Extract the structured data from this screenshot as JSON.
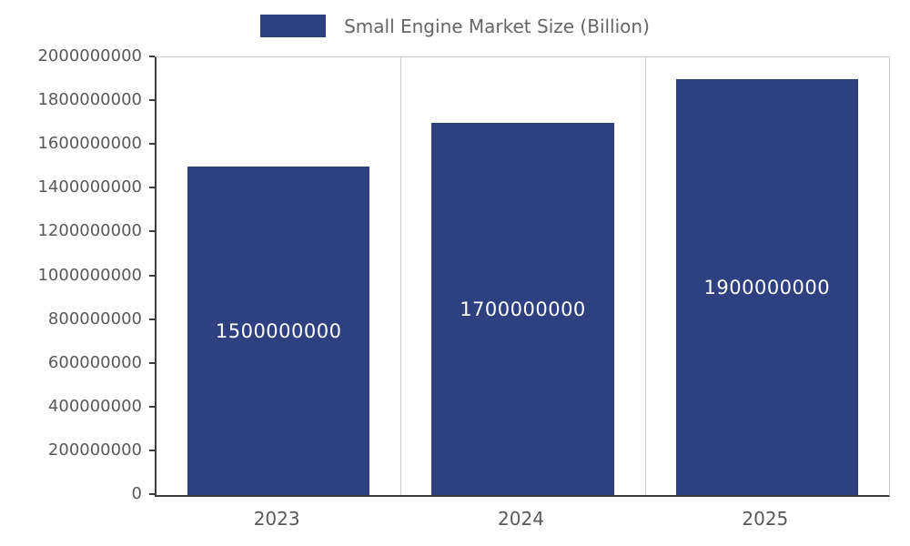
{
  "chart_data": {
    "type": "bar",
    "title": "Small Engine Market Size (Billion)",
    "categories": [
      "2023",
      "2024",
      "2025"
    ],
    "values": [
      1500000000,
      1700000000,
      1900000000
    ],
    "series": [
      {
        "name": "Small Engine Market Size (Billion)",
        "values": [
          1500000000,
          1700000000,
          1900000000
        ]
      }
    ],
    "xlabel": "",
    "ylabel": "",
    "ylim": [
      0,
      2000000000
    ],
    "ytick_step": 200000000,
    "ytick_labels": [
      "0",
      "200000000",
      "400000000",
      "600000000",
      "800000000",
      "1000000000",
      "1200000000",
      "1400000000",
      "1600000000",
      "1800000000",
      "2000000000"
    ],
    "bar_value_labels": [
      "1500000000",
      "1700000000",
      "1900000000"
    ],
    "grid": "vertical-category-separators",
    "legend": {
      "label": "Small Engine Market Size (Billion)",
      "position": "top"
    },
    "colors": {
      "bar": "#2e4080",
      "value_label": "#ffffff",
      "tick_label": "#595959",
      "legend_text": "#666666",
      "grid": "#cccccc",
      "axis": "#3d3d3d"
    }
  }
}
